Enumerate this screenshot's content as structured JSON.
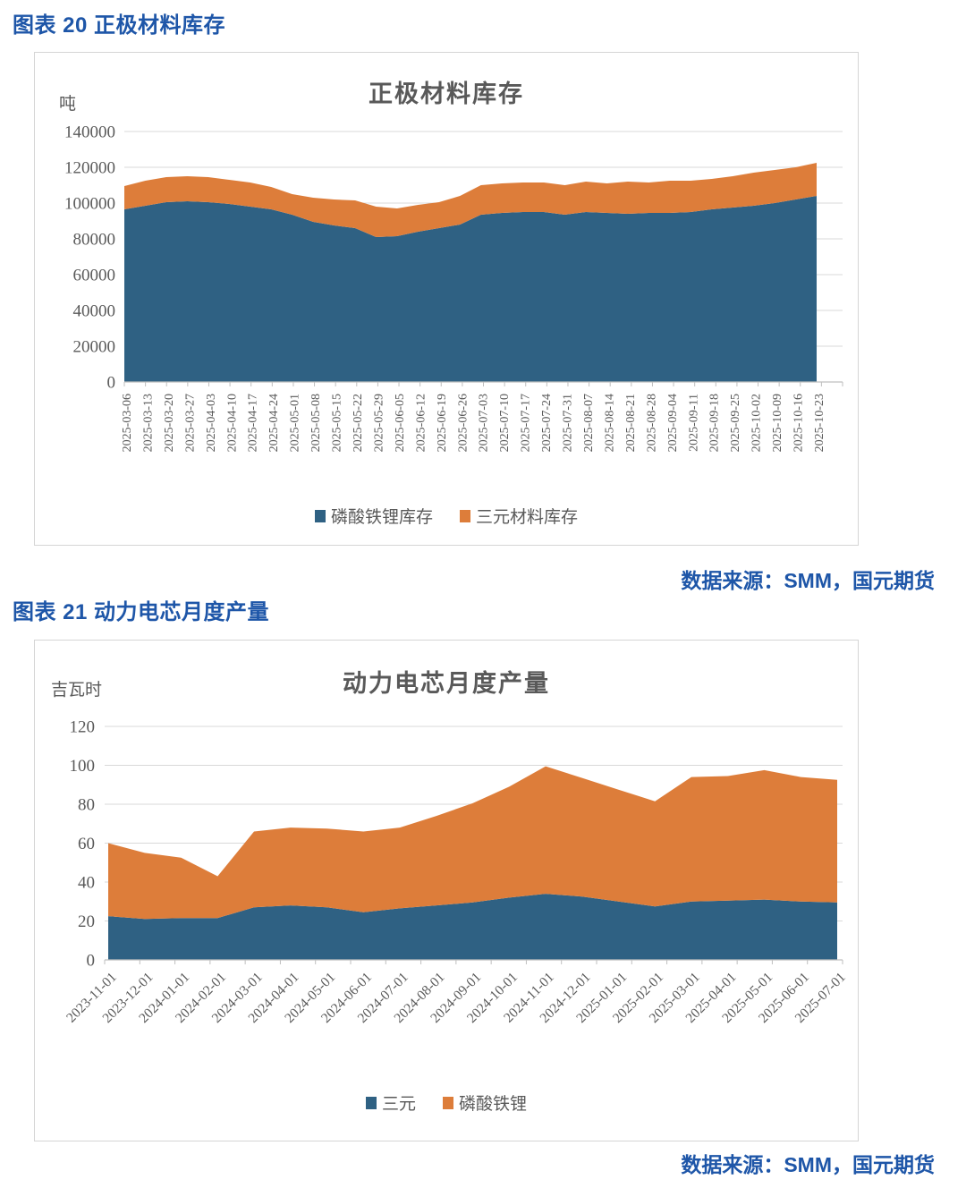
{
  "figures": [
    {
      "heading": "图表 20 正极材料库存",
      "source": "数据来源：SMM，国元期货"
    },
    {
      "heading": "图表 21 动力电芯月度产量",
      "source": "数据来源：SMM，国元期货"
    }
  ],
  "colors": {
    "heading_blue": "#1e56a8",
    "series_blue": "#2f6183",
    "series_orange": "#dd7d3a",
    "gridline": "#d9d9d9",
    "axis": "#bfbfbf",
    "chart_text": "#595959"
  },
  "chart_data": [
    {
      "type": "area",
      "stacked": true,
      "name": "cathode-material-inventory",
      "title": "正极材料库存",
      "unit_label": "吨",
      "ylim": [
        0,
        140000
      ],
      "ytick_step": 20000,
      "grid": true,
      "legend_position": "bottom",
      "categories": [
        "2025-03-06",
        "2025-03-13",
        "2025-03-20",
        "2025-03-27",
        "2025-04-03",
        "2025-04-10",
        "2025-04-17",
        "2025-04-24",
        "2025-05-01",
        "2025-05-08",
        "2025-05-15",
        "2025-05-22",
        "2025-05-29",
        "2025-06-05",
        "2025-06-12",
        "2025-06-19",
        "2025-06-26",
        "2025-07-03",
        "2025-07-10",
        "2025-07-17",
        "2025-07-24",
        "2025-07-31",
        "2025-08-07",
        "2025-08-14",
        "2025-08-21",
        "2025-08-28",
        "2025-09-04",
        "2025-09-11",
        "2025-09-18",
        "2025-09-25",
        "2025-10-02",
        "2025-10-09",
        "2025-10-16",
        "2025-10-23"
      ],
      "series": [
        {
          "name": "磷酸铁锂库存",
          "color": "#2f6183",
          "values": [
            96500,
            98500,
            100500,
            101000,
            100500,
            99500,
            98000,
            96500,
            93500,
            89500,
            87500,
            86000,
            81000,
            81500,
            84000,
            86000,
            88000,
            93500,
            94500,
            95000,
            95000,
            93500,
            95000,
            94500,
            94000,
            94500,
            94500,
            95000,
            96500,
            97500,
            98500,
            100000,
            102000,
            104000
          ]
        },
        {
          "name": "三元材料库存",
          "color": "#dd7d3a",
          "values": [
            13000,
            14000,
            14000,
            14000,
            14000,
            13500,
            13500,
            12500,
            11500,
            13500,
            14500,
            15500,
            17000,
            15500,
            15000,
            14500,
            16000,
            16500,
            16500,
            16500,
            16500,
            16500,
            17000,
            16500,
            18000,
            17000,
            18000,
            17500,
            17000,
            17500,
            18500,
            18500,
            18000,
            18500
          ]
        }
      ]
    },
    {
      "type": "area",
      "stacked": true,
      "name": "power-cell-monthly-output",
      "title": "动力电芯月度产量",
      "unit_label": "吉瓦时",
      "ylim": [
        0,
        120
      ],
      "ytick_step": 20,
      "grid": true,
      "legend_position": "bottom",
      "categories": [
        "2023-11-01",
        "2023-12-01",
        "2024-01-01",
        "2024-02-01",
        "2024-03-01",
        "2024-04-01",
        "2024-05-01",
        "2024-06-01",
        "2024-07-01",
        "2024-08-01",
        "2024-09-01",
        "2024-10-01",
        "2024-11-01",
        "2024-12-01",
        "2025-01-01",
        "2025-02-01",
        "2025-03-01",
        "2025-04-01",
        "2025-05-01",
        "2025-06-01",
        "2025-07-01"
      ],
      "series": [
        {
          "name": "三元",
          "color": "#2f6183",
          "values": [
            22.5,
            21,
            21.5,
            21.5,
            27,
            28,
            27,
            24.5,
            26.5,
            28,
            29.5,
            32,
            34,
            32.5,
            30,
            27.5,
            30,
            30.5,
            31,
            30,
            29.5
          ]
        },
        {
          "name": "磷酸铁锂",
          "color": "#dd7d3a",
          "values": [
            37.5,
            34,
            31,
            21.5,
            39,
            40,
            40.5,
            41.5,
            41.5,
            46,
            51,
            57,
            65.5,
            61,
            57.5,
            54,
            64,
            64,
            66.5,
            64,
            63
          ]
        }
      ]
    }
  ]
}
